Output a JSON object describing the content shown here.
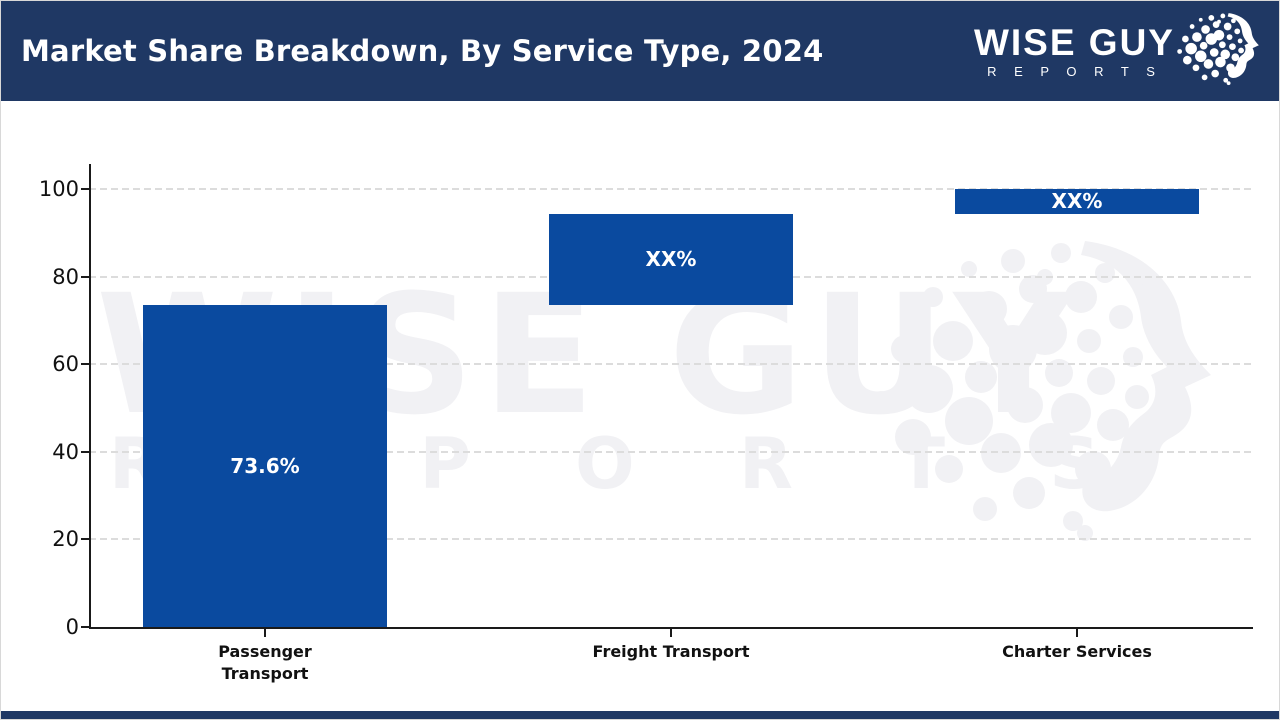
{
  "header": {
    "title": "Market Share Breakdown, By Service Type, 2024",
    "bg_color": "#1f3864",
    "logo": {
      "line1": "WISE GUY",
      "line2": "R E P O R T S"
    }
  },
  "watermark": {
    "line1": "WISE GUY",
    "line2": "R E P O R T S",
    "color": "#f1f1f4"
  },
  "chart_data": {
    "type": "bar",
    "subtype": "floating-stacked-percent",
    "title": "Market Share Breakdown, By Service Type, 2024",
    "categories": [
      "Passenger\nTransport",
      "Freight Transport",
      "Charter Services"
    ],
    "series": [
      {
        "name": "Market Share",
        "segments": [
          {
            "category": "Passenger Transport",
            "start": 0,
            "end": 73.6,
            "label": "73.6%"
          },
          {
            "category": "Freight Transport",
            "start": 73.6,
            "end": 94.3,
            "label": "XX%"
          },
          {
            "category": "Charter Services",
            "start": 94.3,
            "end": 100,
            "label": "XX%"
          }
        ]
      }
    ],
    "xlabel": "",
    "ylabel": "",
    "ylim": [
      0,
      100
    ],
    "yticks": [
      0,
      20,
      40,
      60,
      80,
      100
    ],
    "grid": "horizontal-dashed",
    "legend": "none",
    "bar_color": "#0a4a9f",
    "bar_label_color": "#ffffff",
    "grid_color": "#dcdcdc",
    "axis_color": "#1a1a1a"
  }
}
